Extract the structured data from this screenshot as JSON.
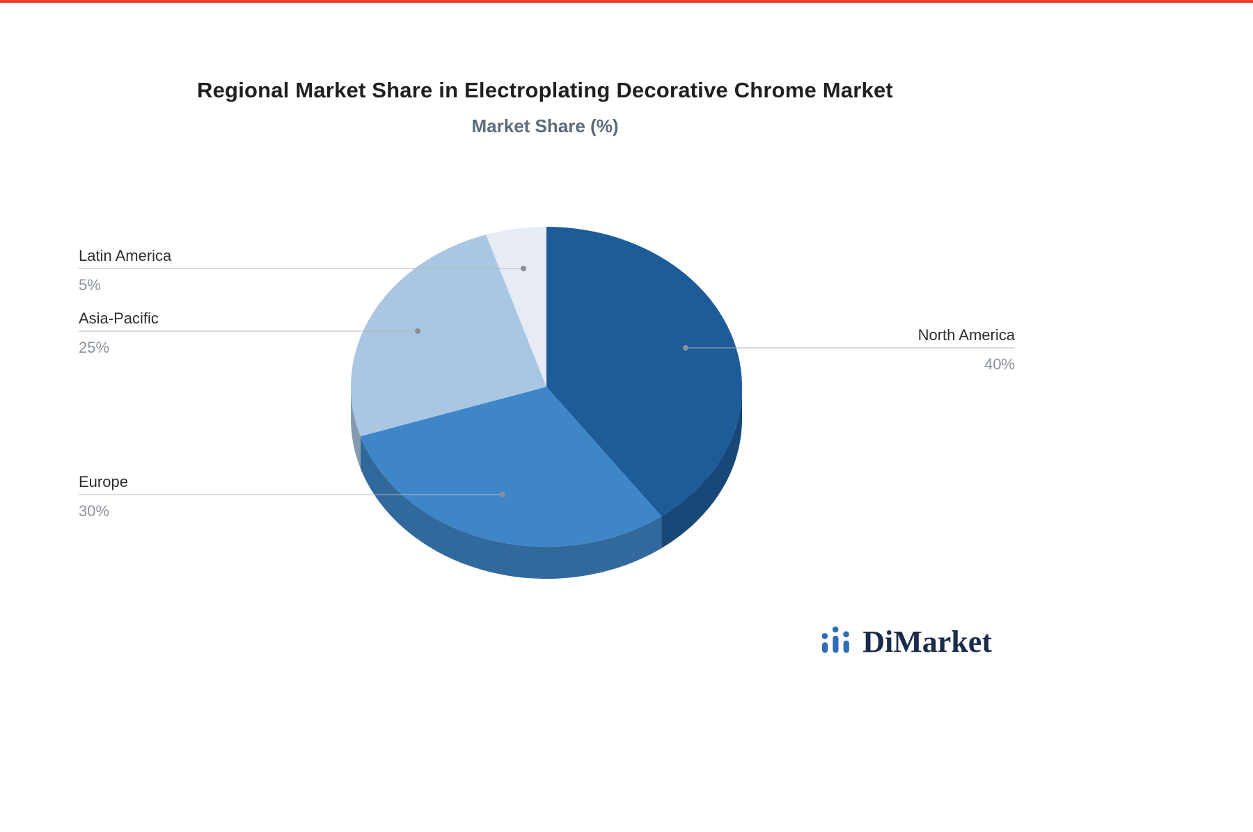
{
  "page": {
    "background": "#ffffff",
    "top_border_color": "#f23b2d"
  },
  "chart_data": {
    "type": "pie",
    "title": "Regional Market Share in Electroplating Decorative Chrome Market",
    "subtitle": "Market Share (%)",
    "unit": "%",
    "direction": "clockwise",
    "start_angle": "12-o'clock",
    "labels_style": "callout-leader-lines",
    "legend_position": "none",
    "effect": "3d-depth",
    "slices": [
      {
        "label": "North America",
        "value": 40,
        "display": "40%",
        "color": "#1d5c99"
      },
      {
        "label": "Europe",
        "value": 30,
        "display": "30%",
        "color": "#3f86c9"
      },
      {
        "label": "Asia-Pacific",
        "value": 25,
        "display": "25%",
        "color": "#a9c6e3"
      },
      {
        "label": "Latin America",
        "value": 5,
        "display": "5%",
        "color": "#e7ecf4"
      }
    ],
    "callout_line_color": "#b5b5b5",
    "callout_dot_color": "#8a8f94"
  },
  "branding": {
    "logo_text": "DiMarket",
    "logo_text_color": "#1b2b4b",
    "icon_color": "#2f6db5",
    "icon": "bar-chart-dots-icon"
  }
}
